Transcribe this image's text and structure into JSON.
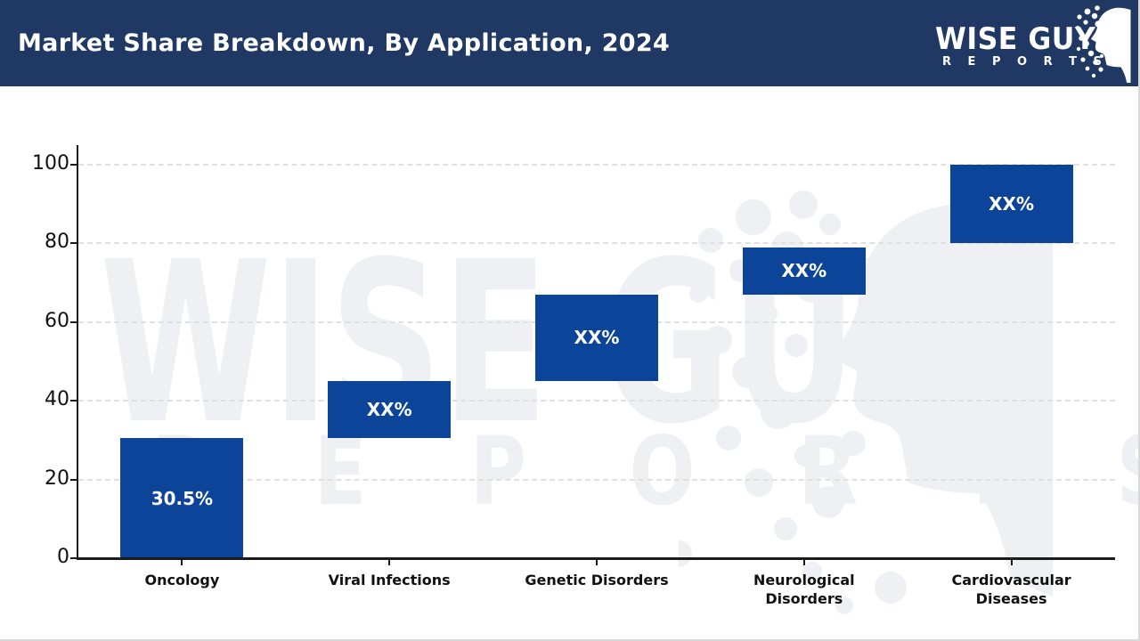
{
  "header": {
    "title": "Market Share Breakdown, By Application, 2024",
    "bg_color": "#203864",
    "logo": {
      "line1": "WISE GUY",
      "line2": "REPORTS"
    }
  },
  "watermark": {
    "line1": "WISE GUY",
    "line2": "REPORTS"
  },
  "chart_data": {
    "type": "bar",
    "variant": "waterfall",
    "title": "Market Share Breakdown, By Application, 2024",
    "categories": [
      "Oncology",
      "Viral Infections",
      "Genetic Disorders",
      "Neurological Disorders",
      "Cardiovascular Diseases"
    ],
    "segments": [
      {
        "category": "Oncology",
        "start": 0,
        "end": 30.5,
        "label": "30.5%"
      },
      {
        "category": "Viral Infections",
        "start": 30.5,
        "end": 45,
        "label": "XX%"
      },
      {
        "category": "Genetic Disorders",
        "start": 45,
        "end": 67,
        "label": "XX%"
      },
      {
        "category": "Neurological Disorders",
        "start": 67,
        "end": 79,
        "label": "XX%"
      },
      {
        "category": "Cardiovascular Diseases",
        "start": 80,
        "end": 100,
        "label": "XX%"
      }
    ],
    "yticks": [
      0,
      20,
      40,
      60,
      80,
      100
    ],
    "ylim": [
      0,
      105
    ],
    "xlabel": "",
    "ylabel": "",
    "grid": "dashed-horizontal",
    "legend": "none",
    "bar_color": "#0b4499",
    "bar_label_color": "#ffffff",
    "axis_color": "#1a1a1a"
  }
}
